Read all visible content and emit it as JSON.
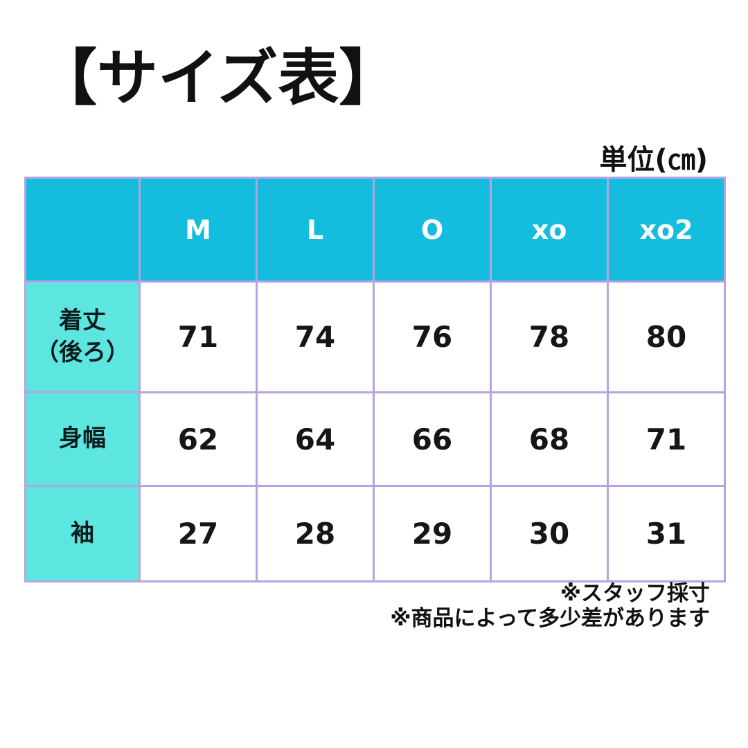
{
  "page": {
    "title": "【サイズ表】",
    "unit_label": "単位(㎝)"
  },
  "table": {
    "columns": [
      "",
      "M",
      "L",
      "O",
      "xo",
      "xo2"
    ],
    "rows": [
      {
        "label": "着丈\n（後ろ）",
        "values": [
          "71",
          "74",
          "76",
          "78",
          "80"
        ]
      },
      {
        "label": "身幅",
        "values": [
          "62",
          "64",
          "66",
          "68",
          "71"
        ]
      },
      {
        "label": "袖",
        "values": [
          "27",
          "28",
          "29",
          "30",
          "31"
        ]
      }
    ]
  },
  "notes": {
    "line1": "※スタッフ採寸",
    "line2": "※商品によって多少差があります"
  },
  "colors": {
    "header_bg": "#14bcde",
    "label_bg": "#5de5e0",
    "border": "#b7a3e0",
    "outer_top": "#3a9ed8",
    "header_text": "#ffffff",
    "body_text": "#111111"
  }
}
